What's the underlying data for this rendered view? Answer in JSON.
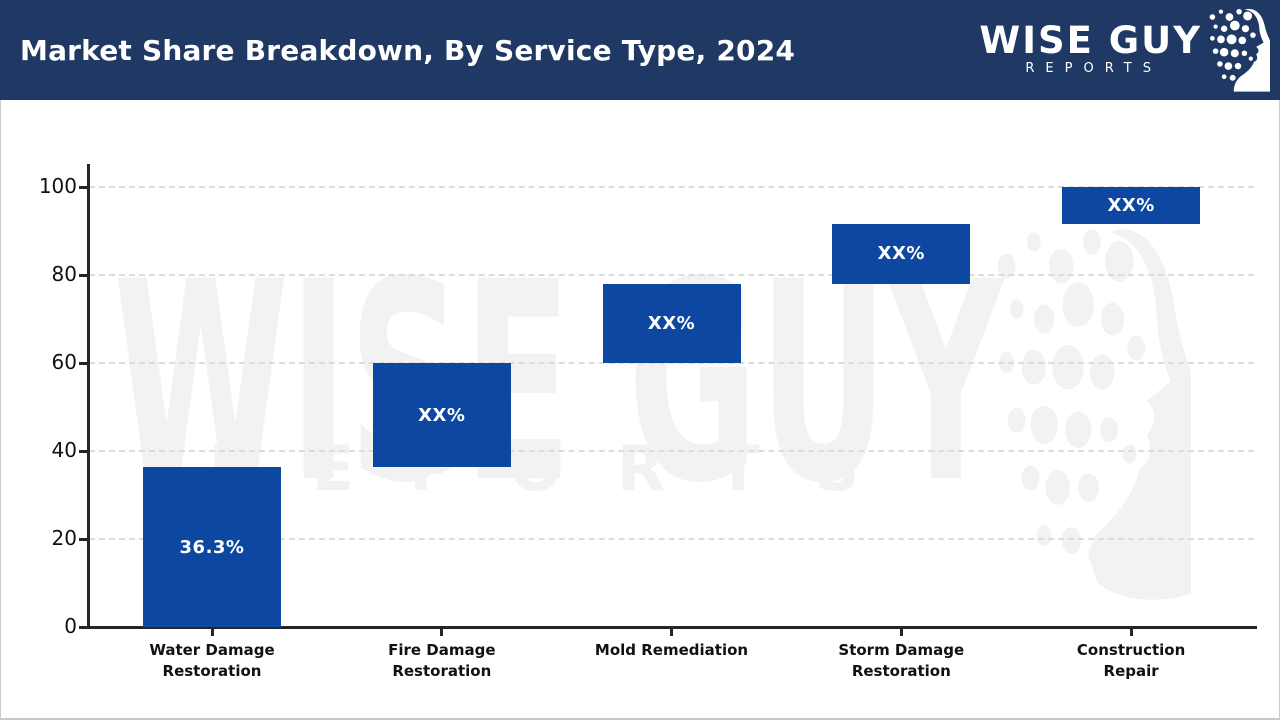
{
  "header": {
    "title": "Market Share Breakdown, By Service Type, 2024",
    "logo": {
      "line1": "WISE GUY",
      "line2": "REPORTS"
    }
  },
  "watermark": {
    "line1": "WISE GUY",
    "line2": "REPORTS"
  },
  "colors": {
    "header_bg": "#203864",
    "bar": "#0d47a1",
    "grid": "#dcdcdc",
    "axis": "#262626",
    "bar_label_text": "#ffffff",
    "watermark": "#f2f2f2"
  },
  "chart_data": {
    "type": "bar",
    "subtype": "waterfall",
    "title": "Market Share Breakdown, By Service Type, 2024",
    "xlabel": "",
    "ylabel": "",
    "ylim": [
      0,
      105
    ],
    "grid": "horizontal-dashed",
    "legend": "none",
    "bar_color": "#0d47a1",
    "categories": [
      "Water Damage\nRestoration",
      "Fire Damage\nRestoration",
      "Mold Remediation",
      "Storm Damage\nRestoration",
      "Construction\nRepair"
    ],
    "yticks": [
      0,
      20,
      40,
      60,
      80,
      100
    ],
    "segments": [
      {
        "category": "Water Damage Restoration",
        "start": 0,
        "end": 36.3,
        "value": 36.3,
        "label": "36.3%"
      },
      {
        "category": "Fire Damage Restoration",
        "start": 36.3,
        "end": 60,
        "value": 23.7,
        "label": "XX%"
      },
      {
        "category": "Mold Remediation",
        "start": 60,
        "end": 78,
        "value": 18,
        "label": "XX%"
      },
      {
        "category": "Storm Damage Restoration",
        "start": 78,
        "end": 91.7,
        "value": 13.7,
        "label": "XX%"
      },
      {
        "category": "Construction Repair",
        "start": 91.7,
        "end": 100,
        "value": 8.3,
        "label": "XX%"
      }
    ]
  }
}
